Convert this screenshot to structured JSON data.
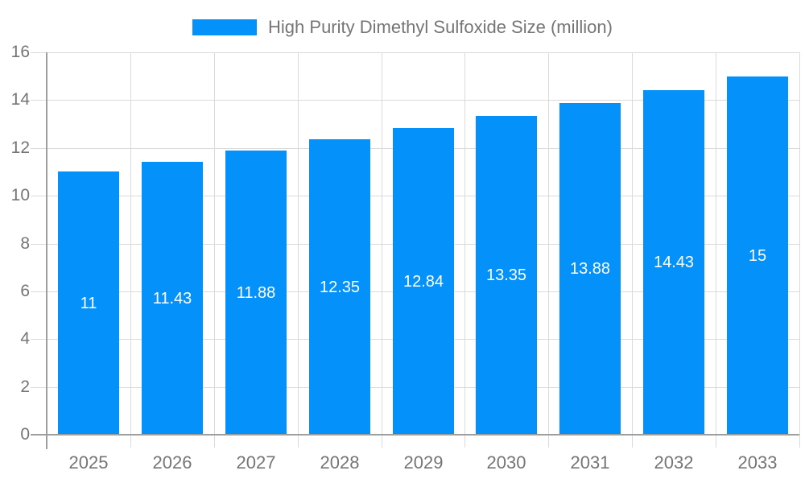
{
  "chart_data": {
    "type": "bar",
    "title": "High Purity Dimethyl Sulfoxide Size (million)",
    "categories": [
      "2025",
      "2026",
      "2027",
      "2028",
      "2029",
      "2030",
      "2031",
      "2032",
      "2033"
    ],
    "values": [
      11,
      11.43,
      11.88,
      12.35,
      12.84,
      13.35,
      13.88,
      14.43,
      15
    ],
    "value_labels": [
      "11",
      "11.43",
      "11.88",
      "12.35",
      "12.84",
      "13.35",
      "13.88",
      "14.43",
      "15"
    ],
    "xlabel": "",
    "ylabel": "",
    "ylim": [
      0,
      16
    ],
    "ytick_step": 2,
    "ytick_labels": [
      "0",
      "2",
      "4",
      "6",
      "8",
      "10",
      "12",
      "14",
      "16"
    ],
    "grid": true,
    "legend_position": "top",
    "colors": {
      "bar": "#0591fa",
      "value_label_text": "#ffffff",
      "axis_text": "#757575",
      "legend_text": "#757575",
      "grid_line": "#dadada",
      "axis_line": "#9e9e9e",
      "background": "#ffffff"
    }
  }
}
